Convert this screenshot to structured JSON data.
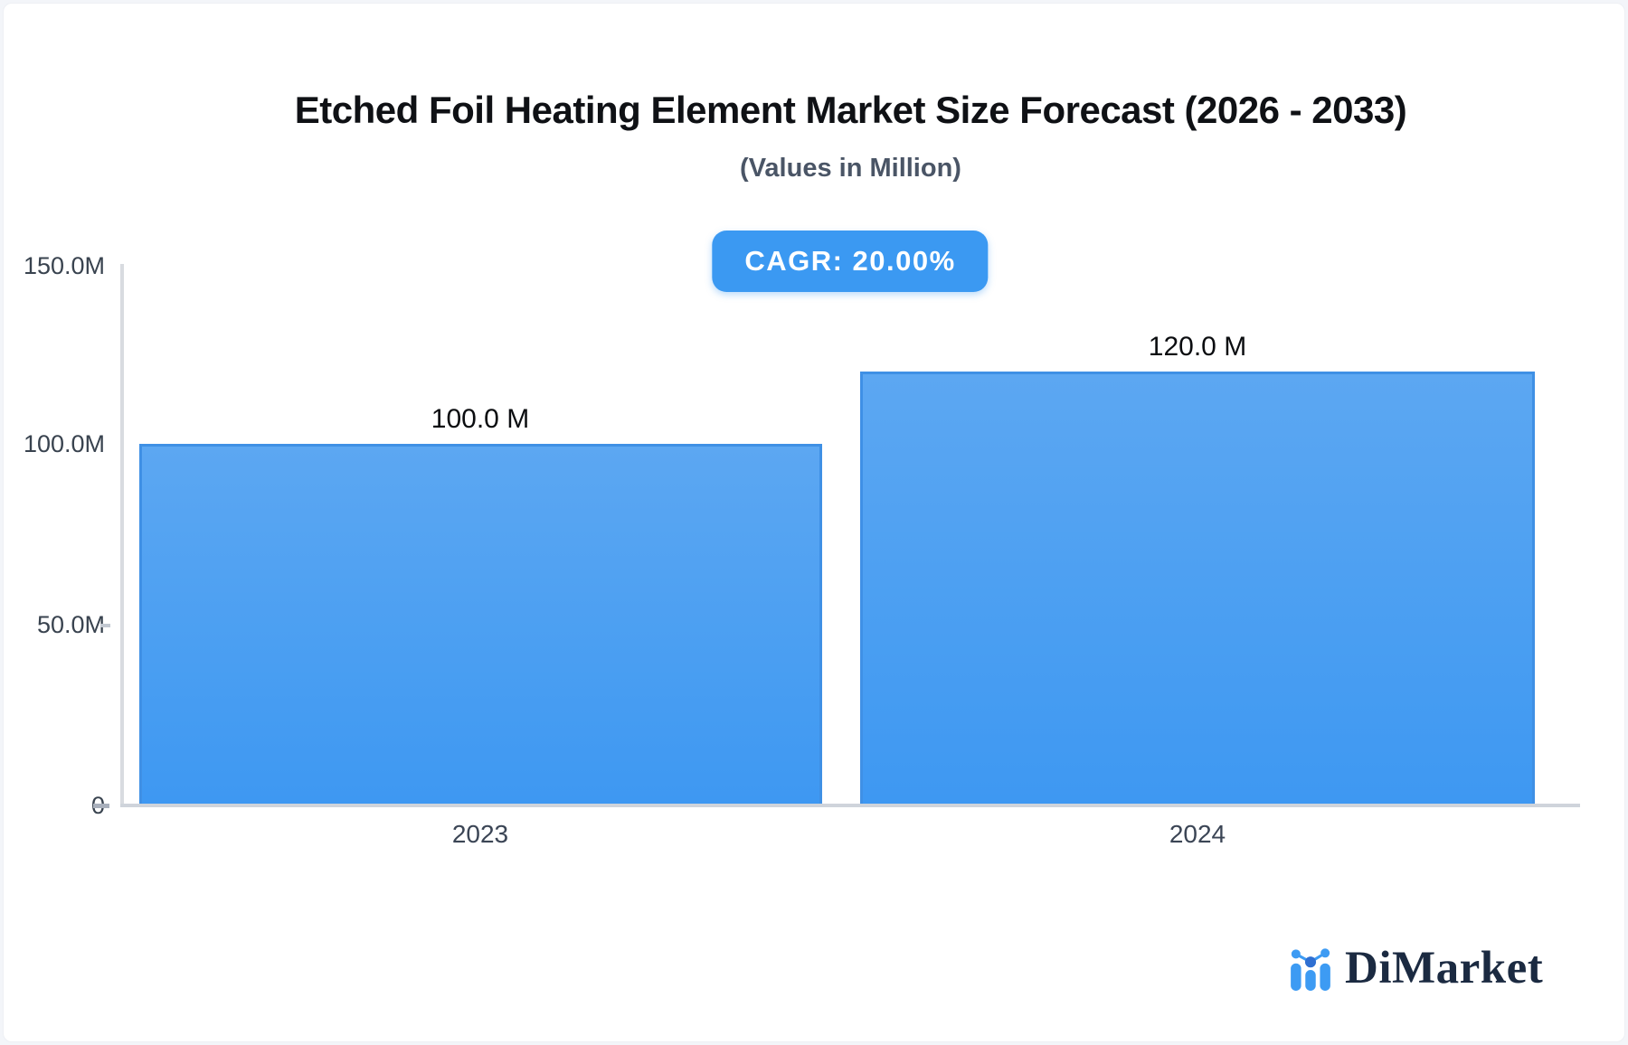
{
  "chart_data": {
    "type": "bar",
    "title": "Etched Foil Heating Element Market Size Forecast (2026 - 2033)",
    "subtitle": "(Values in Million)",
    "cagr_label": "CAGR: 20.00%",
    "cagr_value_percent": 20.0,
    "categories": [
      "2023",
      "2024"
    ],
    "values": [
      100.0,
      120.0
    ],
    "value_labels": [
      "100.0 M",
      "120.0 M"
    ],
    "ylim": [
      0,
      150
    ],
    "y_tick_labels": [
      "150.0M",
      "100.0M",
      "50.0M",
      "0"
    ],
    "y_tick_values": [
      150,
      100,
      50,
      0
    ],
    "grid": false,
    "legend": false,
    "bar_colors": {
      "fill_top": "#5CA7F2",
      "fill_bottom": "#3E98F2",
      "border": "#3F90E5"
    }
  },
  "badge": {
    "bg_color": "#3B99F2",
    "text_color": "#FFFFFF"
  },
  "axis": {
    "line_color": "#D8DBE0",
    "baseline_color": "#CFD4DB",
    "tick_text_color": "#39434F"
  },
  "text_colors": {
    "title": "#0F1115",
    "subtitle": "#4A5566",
    "value_label": "#0B0D10",
    "category_label": "#3B4555"
  },
  "branding": {
    "logo_text": "DiMarket",
    "logo_icon": "mini-bar-line-chart-icon",
    "logo_text_color": "#1B2A41",
    "logo_icon_color": "#3D9BF3",
    "logo_icon_accent_color": "#2F6FD2"
  }
}
